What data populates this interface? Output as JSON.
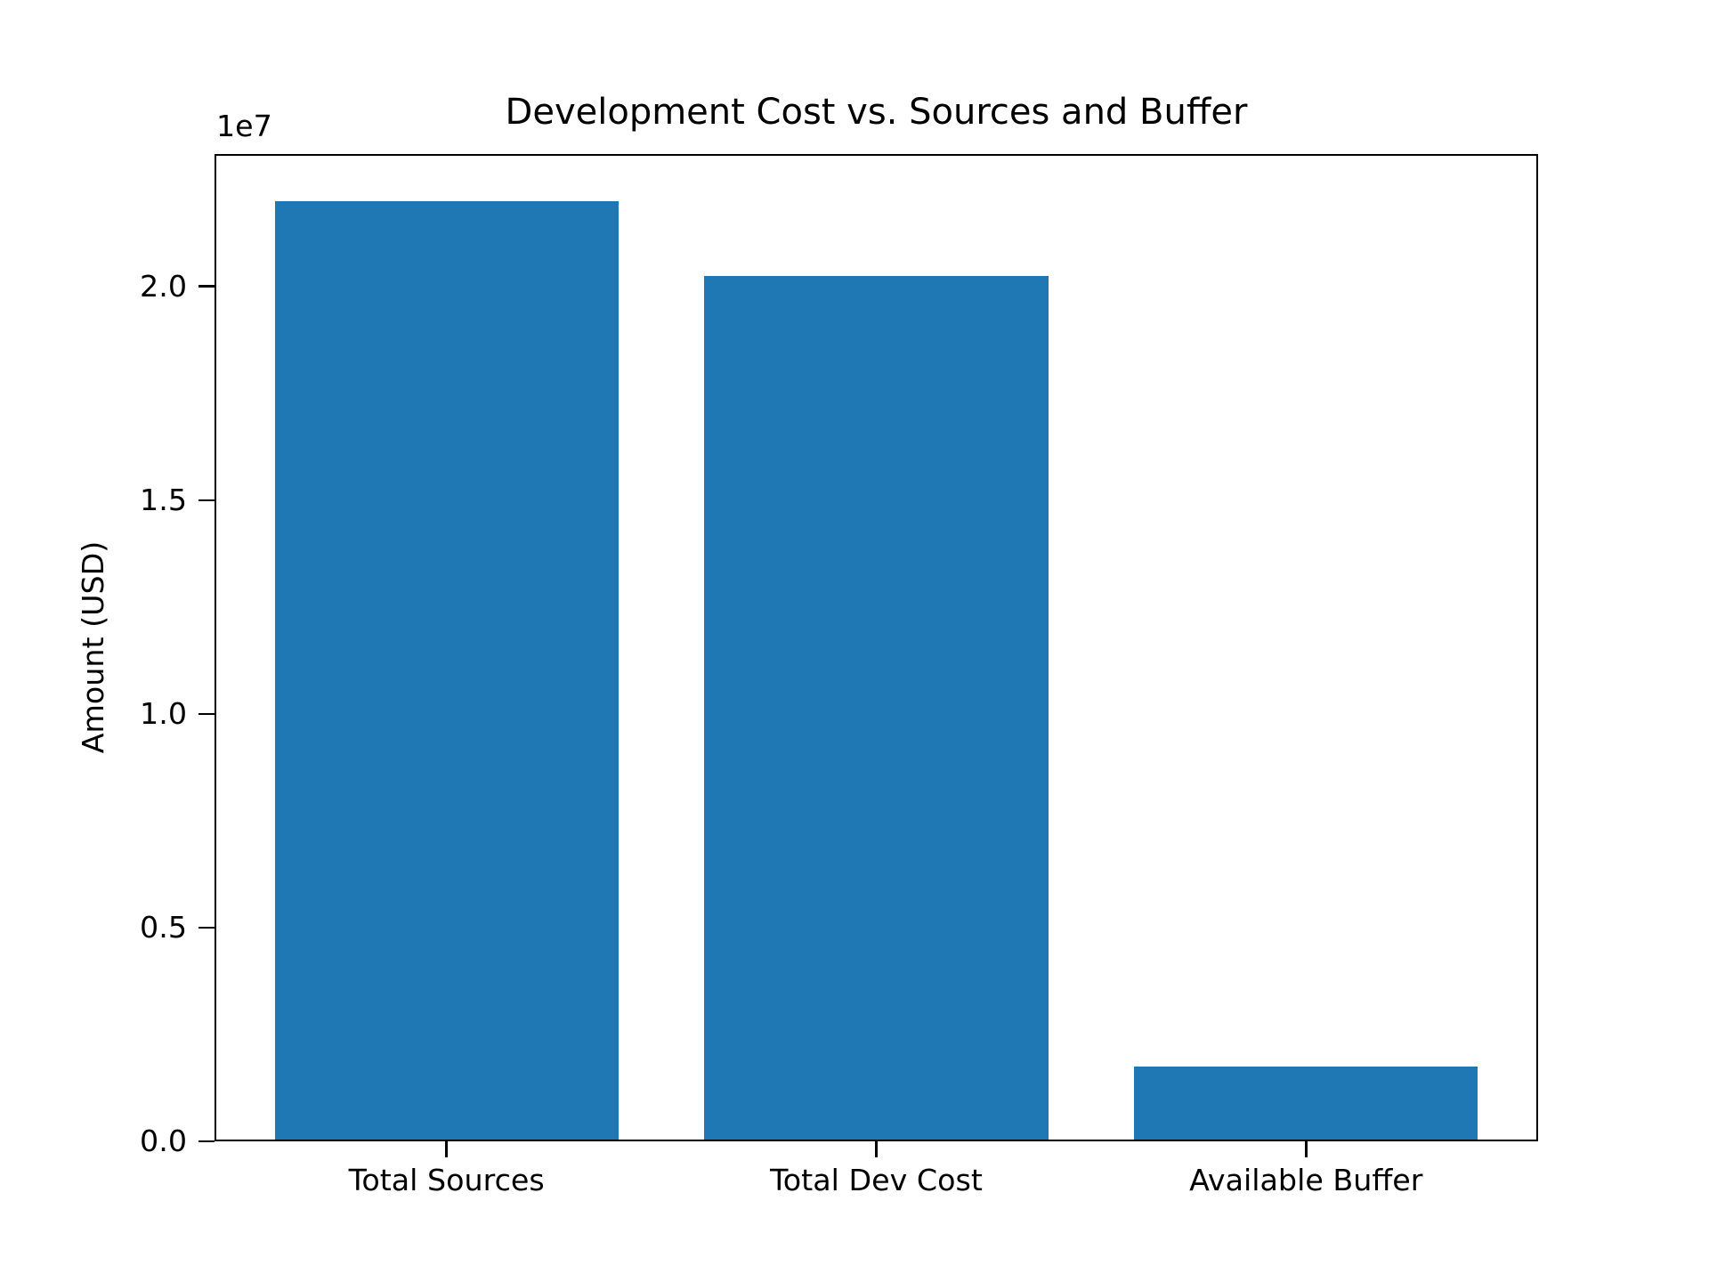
{
  "chart_data": {
    "type": "bar",
    "title": "Development Cost vs. Sources and Buffer",
    "categories": [
      "Total Sources",
      "Total Dev Cost",
      "Available Buffer"
    ],
    "values": [
      22000000,
      20250000,
      1750000
    ],
    "xlabel": "",
    "ylabel": "Amount (USD)",
    "offset_text": "1e7",
    "yticks": [
      0,
      5000000,
      10000000,
      15000000,
      20000000
    ],
    "ytick_labels": [
      "0.0",
      "0.5",
      "1.0",
      "1.5",
      "2.0"
    ],
    "ylim": [
      0,
      23100000
    ],
    "xlim": [
      -0.54,
      2.54
    ],
    "bar_width": 0.8,
    "bar_color": "#1f77b4",
    "background_color": "#ffffff",
    "text_color": "#000000",
    "spine_color": "#000000",
    "grid": false,
    "legend_position": "none"
  }
}
